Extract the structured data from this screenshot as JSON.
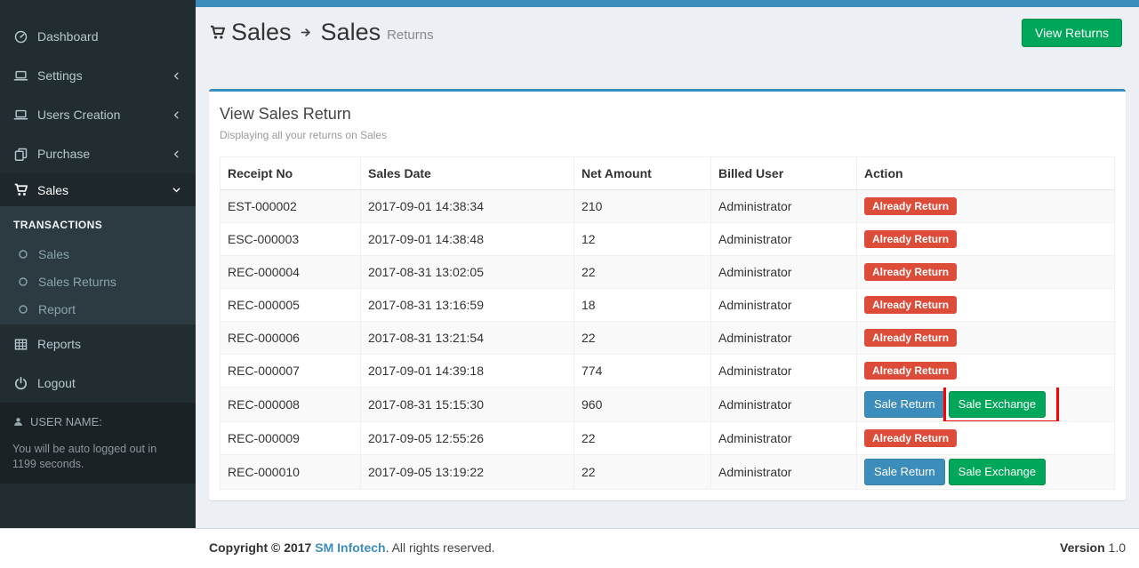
{
  "sidebar": {
    "items": [
      {
        "label": "Dashboard",
        "icon": "dashboard-icon"
      },
      {
        "label": "Settings",
        "icon": "laptop-icon",
        "chevron": "left"
      },
      {
        "label": "Users Creation",
        "icon": "laptop-icon",
        "chevron": "left"
      },
      {
        "label": "Purchase",
        "icon": "copy-icon",
        "chevron": "left"
      },
      {
        "label": "Sales",
        "icon": "cart-icon",
        "chevron": "down",
        "active": true
      }
    ],
    "submenu": {
      "header": "TRANSACTIONS",
      "items": [
        {
          "label": "Sales",
          "icon": "circle-icon"
        },
        {
          "label": "Sales Returns",
          "icon": "circle-icon"
        },
        {
          "label": "Report",
          "icon": "circle-icon"
        }
      ]
    },
    "items_bottom": [
      {
        "label": "Reports",
        "icon": "table-icon"
      },
      {
        "label": "Logout",
        "icon": "power-icon"
      }
    ],
    "user_block": {
      "label": "USER NAME:",
      "note_line1": "You will be auto logged out in",
      "note_line2": "1199 seconds."
    }
  },
  "header": {
    "title_section": "Sales",
    "title_page": "Sales",
    "title_sub": "Returns",
    "view_returns_label": "View Returns"
  },
  "panel": {
    "title": "View Sales Return",
    "subtitle": "Displaying all your returns on Sales"
  },
  "table": {
    "columns": [
      "Receipt No",
      "Sales Date",
      "Net Amount",
      "Billed User",
      "Action"
    ],
    "rows": [
      {
        "receipt": "EST-000002",
        "date": "2017-09-01 14:38:34",
        "amount": "210",
        "user": "Administrator",
        "actions": [
          {
            "label": "Already Return",
            "type": "badge"
          }
        ]
      },
      {
        "receipt": "ESC-000003",
        "date": "2017-09-01 14:38:48",
        "amount": "12",
        "user": "Administrator",
        "actions": [
          {
            "label": "Already Return",
            "type": "badge"
          }
        ]
      },
      {
        "receipt": "REC-000004",
        "date": "2017-08-31 13:02:05",
        "amount": "22",
        "user": "Administrator",
        "actions": [
          {
            "label": "Already Return",
            "type": "badge"
          }
        ]
      },
      {
        "receipt": "REC-000005",
        "date": "2017-08-31 13:16:59",
        "amount": "18",
        "user": "Administrator",
        "actions": [
          {
            "label": "Already Return",
            "type": "badge"
          }
        ]
      },
      {
        "receipt": "REC-000006",
        "date": "2017-08-31 13:21:54",
        "amount": "22",
        "user": "Administrator",
        "actions": [
          {
            "label": "Already Return",
            "type": "badge"
          }
        ]
      },
      {
        "receipt": "REC-000007",
        "date": "2017-09-01 14:39:18",
        "amount": "774",
        "user": "Administrator",
        "actions": [
          {
            "label": "Already Return",
            "type": "badge"
          }
        ]
      },
      {
        "receipt": "REC-000008",
        "date": "2017-08-31 15:15:30",
        "amount": "960",
        "user": "Administrator",
        "actions": [
          {
            "label": "Sale Return",
            "type": "btn-blue"
          },
          {
            "label": "Sale Exchange",
            "type": "btn-green",
            "highlight": true
          }
        ]
      },
      {
        "receipt": "REC-000009",
        "date": "2017-09-05 12:55:26",
        "amount": "22",
        "user": "Administrator",
        "actions": [
          {
            "label": "Already Return",
            "type": "badge"
          }
        ]
      },
      {
        "receipt": "REC-000010",
        "date": "2017-09-05 13:19:22",
        "amount": "22",
        "user": "Administrator",
        "actions": [
          {
            "label": "Sale Return",
            "type": "btn-blue"
          },
          {
            "label": "Sale Exchange",
            "type": "btn-green"
          }
        ]
      }
    ]
  },
  "footer": {
    "copyright_prefix": "Copyright © 2017",
    "company": "SM Infotech",
    "copyright_suffix": ". All rights reserved.",
    "version_label": "Version",
    "version_value": "1.0"
  },
  "colors": {
    "accent_blue": "#3c8dbc",
    "green": "#00a65a",
    "red_badge": "#dd4b39",
    "highlight_red": "#fe0000",
    "sidebar_bg": "#222d32",
    "submenu_bg": "#2c3b41",
    "content_bg": "#ecf0f5"
  }
}
